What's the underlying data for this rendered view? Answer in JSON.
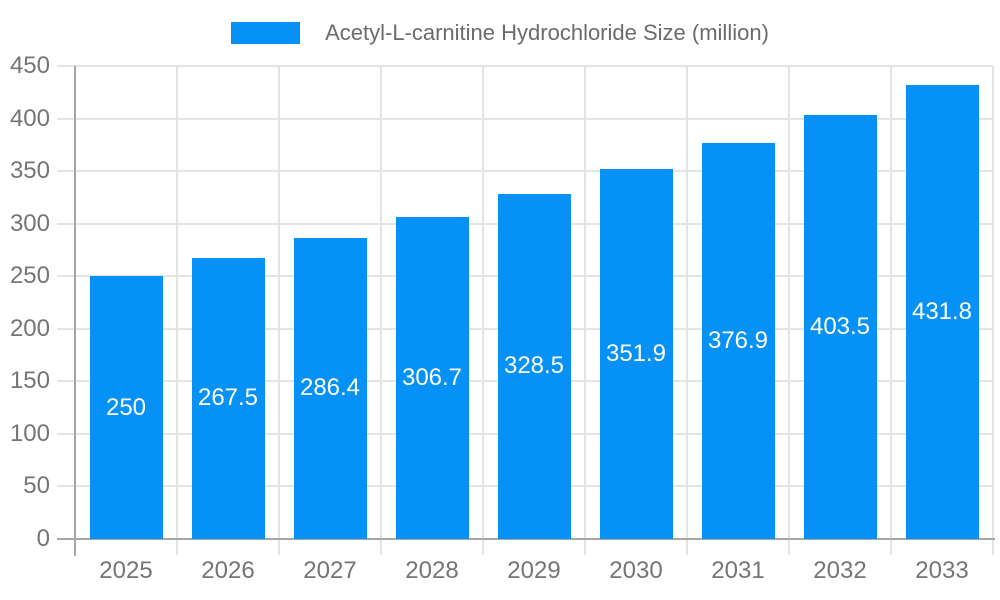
{
  "chart_data": {
    "type": "bar",
    "title": "Acetyl-L-carnitine Hydrochloride Size (million)",
    "legend": [
      "Acetyl-L-carnitine Hydrochloride Size (million)"
    ],
    "legend_position": "top-center",
    "categories": [
      "2025",
      "2026",
      "2027",
      "2028",
      "2029",
      "2030",
      "2031",
      "2032",
      "2033"
    ],
    "series": [
      {
        "name": "Acetyl-L-carnitine Hydrochloride Size (million)",
        "values": [
          250,
          267.5,
          286.4,
          306.7,
          328.5,
          351.9,
          376.9,
          403.5,
          431.8
        ]
      }
    ],
    "value_labels": [
      "250",
      "267.5",
      "286.4",
      "306.7",
      "328.5",
      "351.9",
      "376.9",
      "403.5",
      "431.8"
    ],
    "xlabel": "",
    "ylabel": "",
    "ylim": [
      0,
      450
    ],
    "yticks": [
      0,
      50,
      100,
      150,
      200,
      250,
      300,
      350,
      400,
      450
    ],
    "grid": true,
    "colors": {
      "bar": "#0591f5",
      "axis_line": "#a6a6a6",
      "grid_line": "#e4e4e4",
      "tick_label": "#757575",
      "legend_text": "#6b6b6b",
      "value_label": "#ffffff",
      "background": "#ffffff"
    }
  }
}
